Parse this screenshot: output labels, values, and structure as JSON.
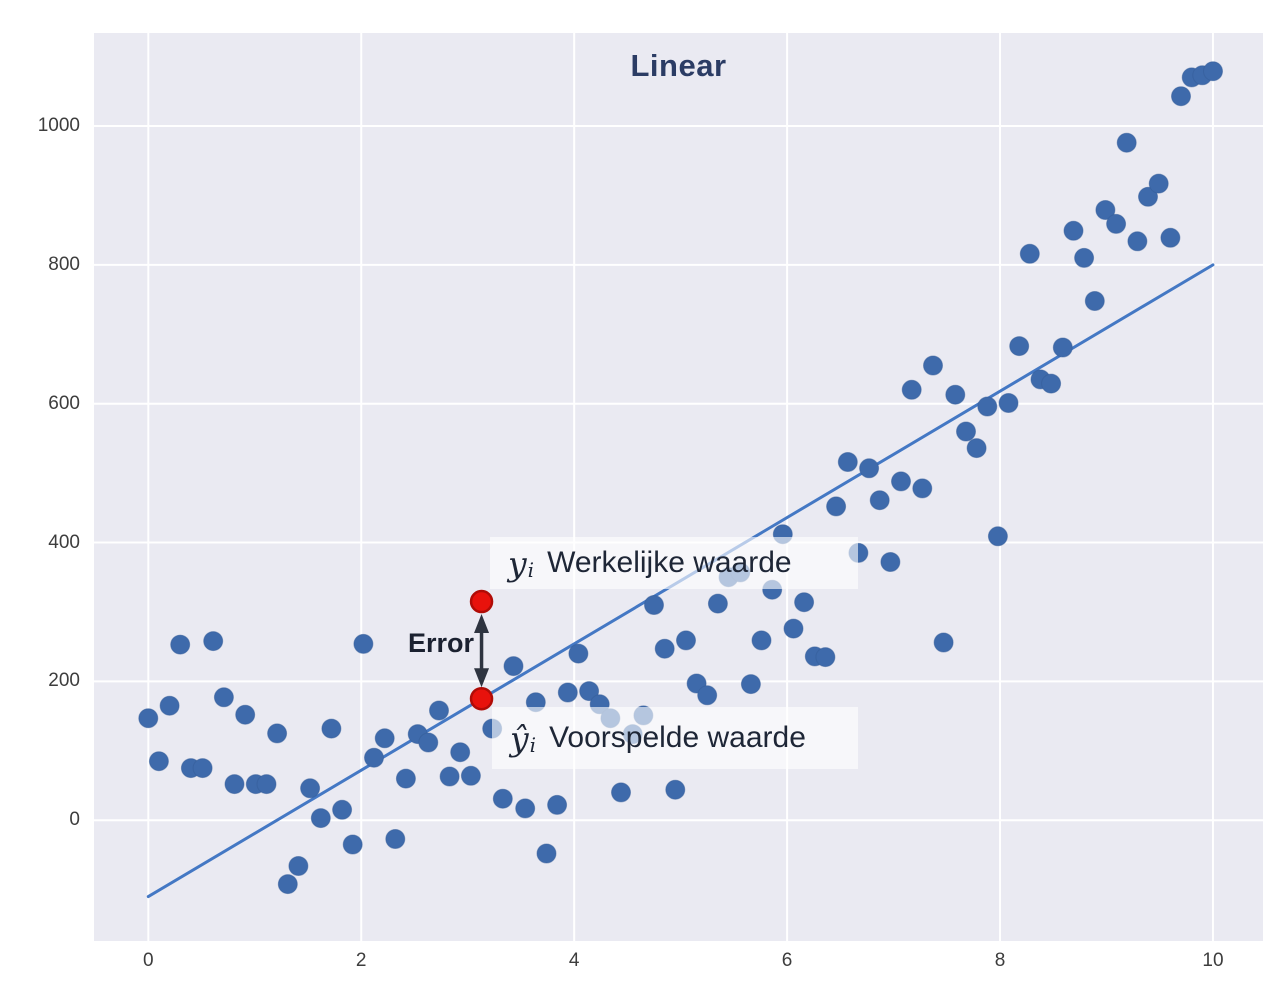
{
  "chart_data": {
    "type": "scatter",
    "title": "Linear",
    "xlabel": "",
    "ylabel": "",
    "x_ticks": [
      0,
      2,
      4,
      6,
      8,
      10
    ],
    "y_ticks": [
      0,
      200,
      400,
      600,
      800,
      1000
    ],
    "xlim": [
      -0.51,
      10.47
    ],
    "ylim": [
      -174,
      1134
    ],
    "grid": true,
    "legend": "none",
    "series": [
      {
        "name": "observations",
        "color": "#3e6aab",
        "marker_radius": 9.5,
        "points": [
          [
            0.0,
            147
          ],
          [
            0.1,
            85
          ],
          [
            0.2,
            165
          ],
          [
            0.3,
            253
          ],
          [
            0.4,
            75
          ],
          [
            0.51,
            75
          ],
          [
            0.61,
            258
          ],
          [
            0.71,
            177
          ],
          [
            0.81,
            52
          ],
          [
            0.91,
            152
          ],
          [
            1.01,
            52
          ],
          [
            1.11,
            52
          ],
          [
            1.21,
            125
          ],
          [
            1.31,
            -92
          ],
          [
            1.41,
            -66
          ],
          [
            1.52,
            46
          ],
          [
            1.62,
            3
          ],
          [
            1.72,
            132
          ],
          [
            1.82,
            15
          ],
          [
            1.92,
            -35
          ],
          [
            2.02,
            254
          ],
          [
            2.12,
            90
          ],
          [
            2.22,
            118
          ],
          [
            2.32,
            -27
          ],
          [
            2.42,
            60
          ],
          [
            2.53,
            124
          ],
          [
            2.63,
            112
          ],
          [
            2.73,
            158
          ],
          [
            2.83,
            63
          ],
          [
            2.93,
            98
          ],
          [
            3.03,
            64
          ],
          [
            3.23,
            132
          ],
          [
            3.33,
            31
          ],
          [
            3.43,
            222
          ],
          [
            3.54,
            17
          ],
          [
            3.64,
            170
          ],
          [
            3.74,
            -48
          ],
          [
            3.84,
            22
          ],
          [
            3.94,
            184
          ],
          [
            4.04,
            240
          ],
          [
            4.14,
            186
          ],
          [
            4.24,
            167
          ],
          [
            4.34,
            147
          ],
          [
            4.44,
            40
          ],
          [
            4.55,
            124
          ],
          [
            4.65,
            151
          ],
          [
            4.75,
            310
          ],
          [
            4.85,
            247
          ],
          [
            4.95,
            44
          ],
          [
            5.05,
            259
          ],
          [
            5.15,
            197
          ],
          [
            5.25,
            180
          ],
          [
            5.35,
            312
          ],
          [
            5.45,
            350
          ],
          [
            5.56,
            357
          ],
          [
            5.66,
            196
          ],
          [
            5.76,
            259
          ],
          [
            5.86,
            332
          ],
          [
            5.96,
            412
          ],
          [
            6.06,
            276
          ],
          [
            6.16,
            314
          ],
          [
            6.26,
            236
          ],
          [
            6.36,
            235
          ],
          [
            6.46,
            452
          ],
          [
            6.57,
            516
          ],
          [
            6.67,
            385
          ],
          [
            6.77,
            507
          ],
          [
            6.87,
            461
          ],
          [
            6.97,
            372
          ],
          [
            7.07,
            488
          ],
          [
            7.17,
            620
          ],
          [
            7.27,
            478
          ],
          [
            7.37,
            655
          ],
          [
            7.47,
            256
          ],
          [
            7.58,
            613
          ],
          [
            7.68,
            560
          ],
          [
            7.78,
            536
          ],
          [
            7.88,
            596
          ],
          [
            7.98,
            409
          ],
          [
            8.08,
            601
          ],
          [
            8.18,
            683
          ],
          [
            8.28,
            816
          ],
          [
            8.38,
            635
          ],
          [
            8.48,
            629
          ],
          [
            8.59,
            681
          ],
          [
            8.69,
            849
          ],
          [
            8.79,
            810
          ],
          [
            8.89,
            748
          ],
          [
            8.99,
            879
          ],
          [
            9.09,
            859
          ],
          [
            9.19,
            976
          ],
          [
            9.29,
            834
          ],
          [
            9.39,
            898
          ],
          [
            9.49,
            917
          ],
          [
            9.6,
            839
          ],
          [
            9.7,
            1043
          ],
          [
            9.8,
            1070
          ],
          [
            9.9,
            1073
          ],
          [
            10.0,
            1079
          ]
        ]
      }
    ],
    "regression_line": {
      "name": "linear-fit",
      "color": "#4478c4",
      "width": 3,
      "x": [
        0,
        10
      ],
      "y": [
        -110,
        800
      ]
    },
    "highlight": {
      "actual_point": {
        "x": 3.13,
        "y": 315
      },
      "predicted_point": {
        "x": 3.13,
        "y": 175
      },
      "point_fill": "#e8120c",
      "point_edge": "#b00c07",
      "point_radius": 10.5,
      "error_label": "Error",
      "arrow_color": "#2e3440"
    },
    "annotations": [
      {
        "symbol": "y",
        "subscript": "i",
        "label": "Werkelijke waarde"
      },
      {
        "symbol": "ŷ",
        "subscript": "i",
        "label": "Voorspelde waarde"
      }
    ],
    "colors": {
      "plot_bg": "#eaeaf2",
      "grid": "#ffffff",
      "title": "#2b3c64",
      "tick": "#3d3d3d",
      "annotation_text": "#1e2636",
      "annotation_bg": "rgba(255,255,255,0.62)"
    }
  }
}
